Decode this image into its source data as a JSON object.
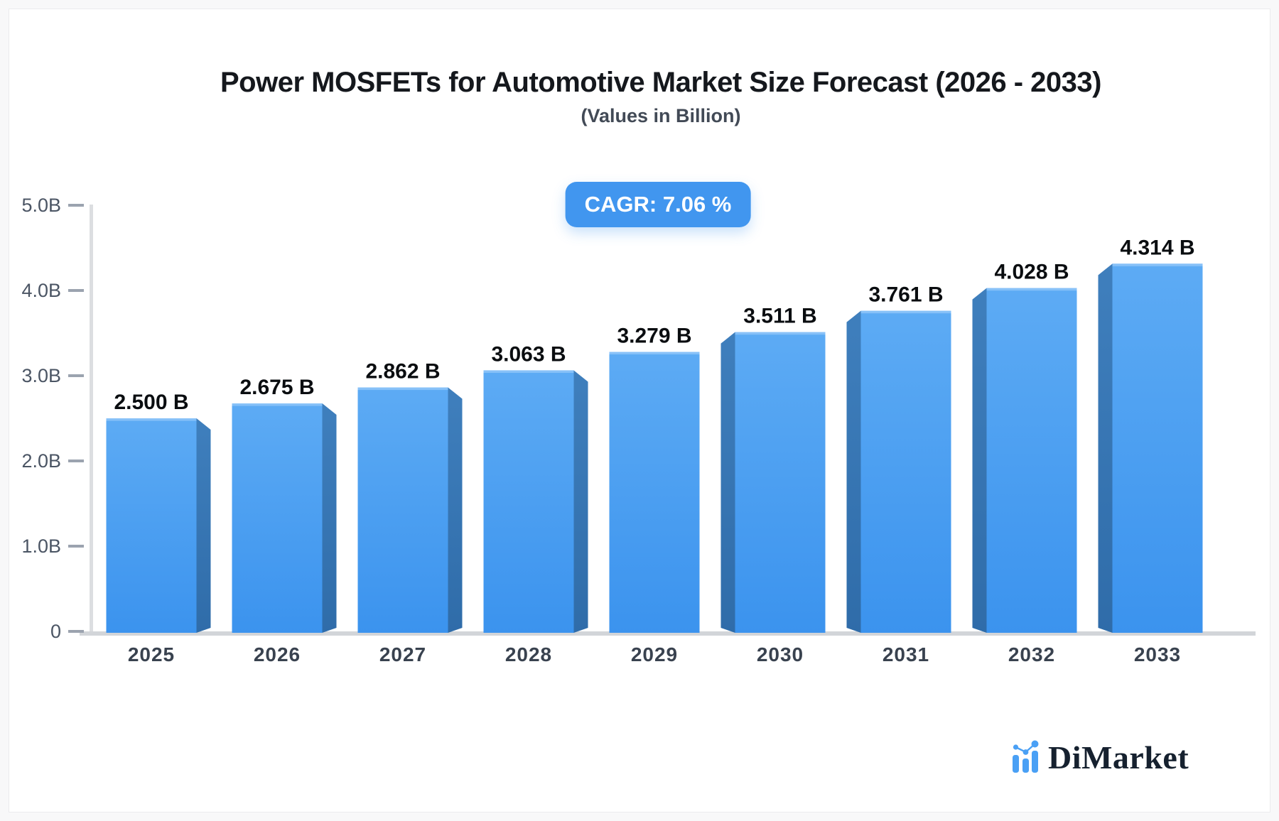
{
  "page": {
    "background": "#ffffff",
    "frame_color": "#f8f8f9"
  },
  "header": {
    "title": "Power MOSFETs for Automotive Market Size Forecast (2026 - 2033)",
    "subtitle": "(Values in Billion)"
  },
  "badge": {
    "label": "CAGR: 7.06 %",
    "background": "#4196ef",
    "text_color": "#ffffff"
  },
  "chart_data": {
    "type": "bar",
    "title": "Power MOSFETs for Automotive Market Size Forecast (2026 - 2033)",
    "subtitle": "(Values in Billion)",
    "annotation": "CAGR: 7.06 %",
    "categories": [
      "2025",
      "2026",
      "2027",
      "2028",
      "2029",
      "2030",
      "2031",
      "2032",
      "2033"
    ],
    "values": [
      2.5,
      2.675,
      2.862,
      3.063,
      3.279,
      3.511,
      3.761,
      4.028,
      4.314
    ],
    "value_labels": [
      "2.500 B",
      "2.675 B",
      "2.862 B",
      "3.063 B",
      "3.279 B",
      "3.511 B",
      "3.761 B",
      "4.028 B",
      "4.314 B"
    ],
    "xlabel": "",
    "ylabel": "",
    "ylim": [
      0,
      5
    ],
    "ytick_labels": [
      "0",
      "1.0B",
      "2.0B",
      "3.0B",
      "4.0B",
      "5.0B"
    ],
    "grid": false,
    "legend": false,
    "style": "pseudo-3d bars, center bar flat, side faces toward center",
    "colors": {
      "face_top": "#5dabf4",
      "face_bottom": "#3b93ee",
      "face_highlight": "#8ec4f8",
      "side_top": "#3f7fbd",
      "side_bottom": "#2f6ca9",
      "axis_line": "#dcdee1",
      "baseline": "#d2d5d9",
      "tick": "#9ba3af",
      "ytick_label": "#4b5564",
      "xtick_label": "#39424f",
      "value_label": "#0a0d10"
    }
  },
  "logo": {
    "text": "DiMarket",
    "icon": "bar-chart-icon",
    "text_color": "#16212f",
    "icon_color": "#4aa0f5"
  }
}
